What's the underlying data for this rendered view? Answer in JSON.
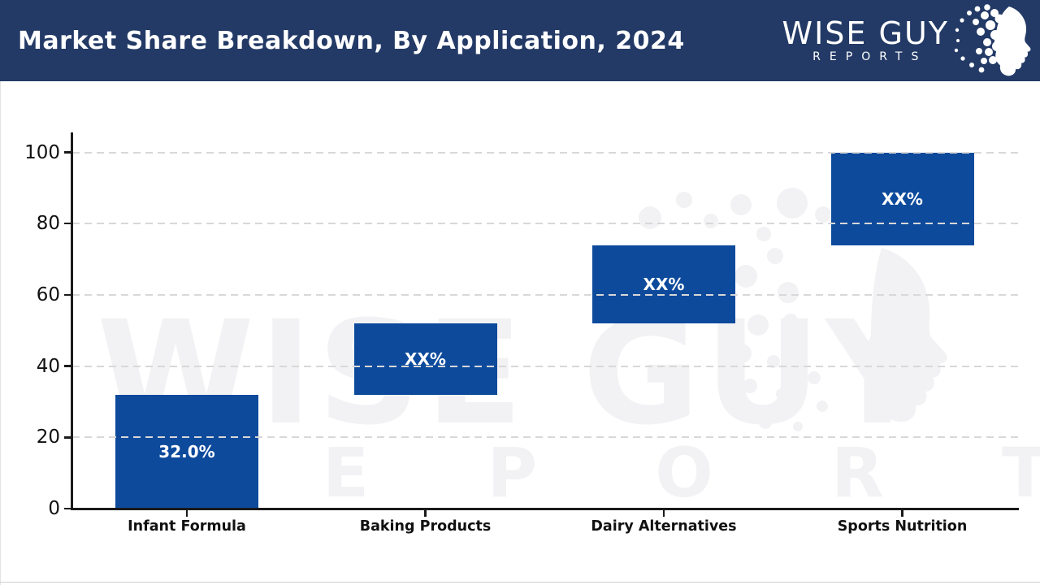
{
  "header": {
    "title": "Market Share Breakdown, By Application, 2024",
    "logo": {
      "line1": "WISE GUY",
      "line2": "REPORTS"
    }
  },
  "watermark": {
    "line1": "WISE GUY",
    "line2": "R E P O R T S"
  },
  "chart_data": {
    "type": "bar",
    "subtype": "waterfall",
    "title": "Market Share Breakdown, By Application, 2024",
    "categories": [
      "Infant Formula",
      "Baking Products",
      "Dairy Alternatives",
      "Sports Nutrition"
    ],
    "segments": [
      {
        "category": "Infant Formula",
        "start": 0,
        "end": 32,
        "label": "32.0%"
      },
      {
        "category": "Baking Products",
        "start": 32,
        "end": 52,
        "label": "XX%"
      },
      {
        "category": "Dairy Alternatives",
        "start": 52,
        "end": 74,
        "label": "XX%"
      },
      {
        "category": "Sports Nutrition",
        "start": 74,
        "end": 100,
        "label": "XX%"
      }
    ],
    "xlabel": "",
    "ylabel": "",
    "ylim": [
      0,
      100
    ],
    "yticks": [
      0,
      20,
      40,
      60,
      80,
      100
    ],
    "grid": "horizontal-dashed",
    "legend": null,
    "bar_color": "#0d4a9c",
    "bar_label_color": "#ffffff"
  },
  "colors": {
    "header_bg": "#233a66",
    "bar": "#0d4a9c",
    "grid": "#d8d8d8",
    "axis": "#1a1a1a",
    "watermark": "#f2f2f4"
  }
}
